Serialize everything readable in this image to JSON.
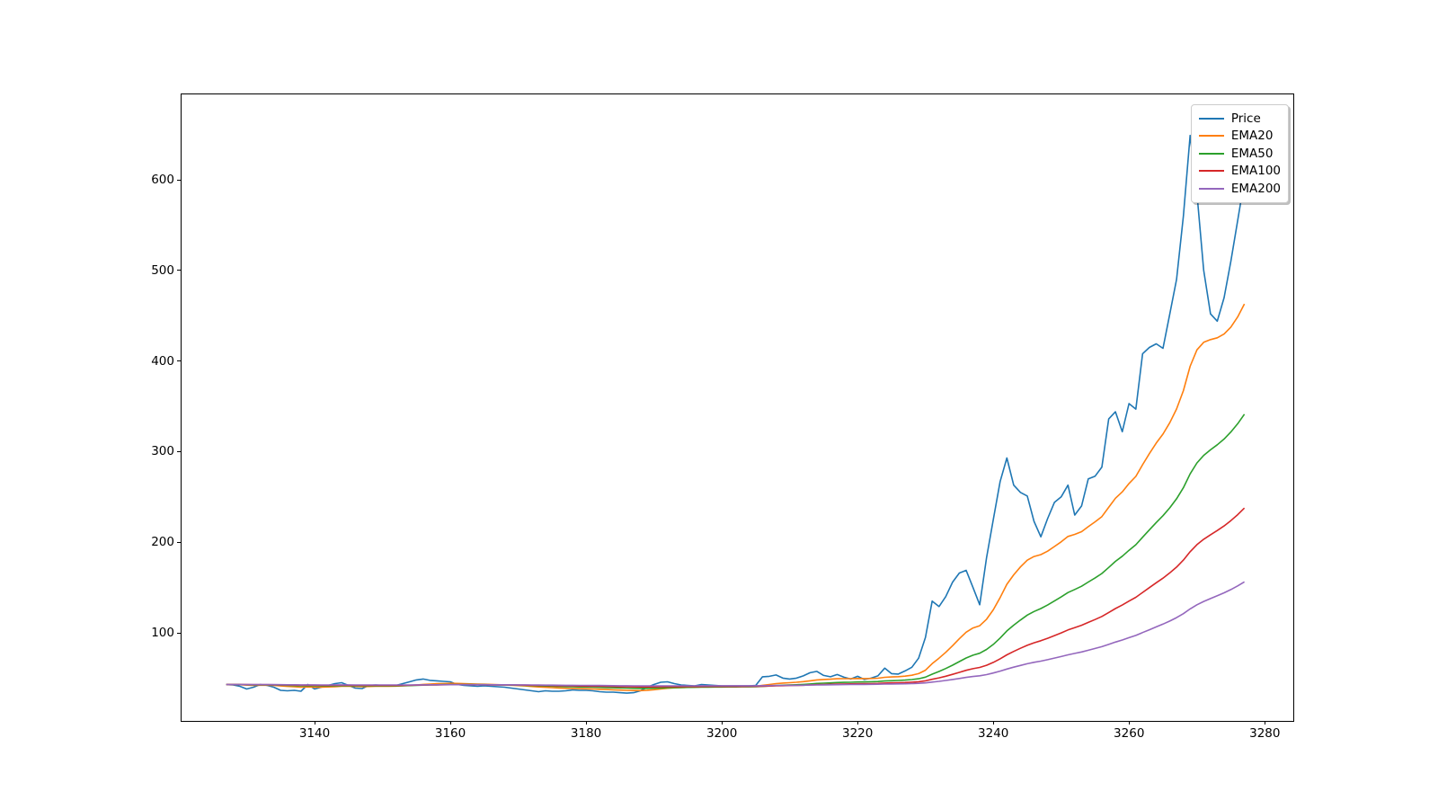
{
  "chart_data": {
    "type": "line",
    "title": "",
    "xlabel": "",
    "ylabel": "",
    "grid": false,
    "legend_position": "upper right",
    "axis_color": "#000000",
    "background_color": "#ffffff",
    "xlim": [
      3120.4,
      3284.2
    ],
    "ylim": [
      2.8,
      694.3
    ],
    "xticks": [
      3140,
      3160,
      3180,
      3200,
      3220,
      3240,
      3260,
      3280
    ],
    "yticks": [
      100,
      200,
      300,
      400,
      500,
      600
    ],
    "x_start": 3127,
    "x_step": 1,
    "n_points": 151,
    "price": [
      43,
      42.5,
      41,
      38,
      40,
      43,
      42,
      40,
      36.5,
      36,
      36.5,
      35.5,
      43,
      38,
      40,
      42,
      44,
      45,
      42,
      39,
      38.5,
      42,
      42.5,
      42,
      41.5,
      42,
      44,
      46,
      48,
      49,
      47.5,
      47,
      46.5,
      46,
      43,
      42,
      41.5,
      41,
      41.5,
      41,
      40.5,
      40,
      39,
      38,
      37,
      36,
      35,
      36,
      35.5,
      35.5,
      36,
      37,
      36.5,
      36.5,
      36,
      35,
      34.5,
      34.5,
      34,
      33.5,
      34,
      36,
      40,
      43,
      45.5,
      46,
      44,
      42.5,
      42,
      41.5,
      43,
      42.5,
      42,
      41.5,
      41.5,
      41.5,
      41.5,
      41.5,
      42,
      51.5,
      52,
      53.5,
      50,
      49,
      50,
      52.5,
      56,
      57.5,
      53,
      51.5,
      54,
      51,
      49,
      52,
      48.5,
      50,
      52.5,
      61,
      55,
      54.5,
      58,
      62,
      72,
      95,
      135,
      129,
      140,
      156,
      166,
      169,
      150,
      131,
      183,
      225,
      267,
      293,
      263,
      255,
      251,
      223,
      206,
      226,
      244,
      250,
      263,
      230,
      240,
      270,
      273,
      283,
      336,
      344,
      322,
      353,
      347,
      408,
      415,
      419,
      414,
      452,
      490,
      560,
      649,
      585,
      500,
      452,
      444,
      470,
      510,
      555,
      600
    ],
    "series": [
      {
        "name": "Price",
        "color": "#1f77b4",
        "kind": "price",
        "end_value_approx": 600
      },
      {
        "name": "EMA20",
        "color": "#ff7f0e",
        "kind": "ema",
        "span": 20,
        "end_value_approx": 485
      },
      {
        "name": "EMA50",
        "color": "#2ca02c",
        "kind": "ema",
        "span": 50,
        "end_value_approx": 350
      },
      {
        "name": "EMA100",
        "color": "#d62728",
        "kind": "ema",
        "span": 100,
        "end_value_approx": 241
      },
      {
        "name": "EMA200",
        "color": "#9467bd",
        "kind": "ema",
        "span": 200,
        "end_value_approx": 158
      }
    ]
  }
}
